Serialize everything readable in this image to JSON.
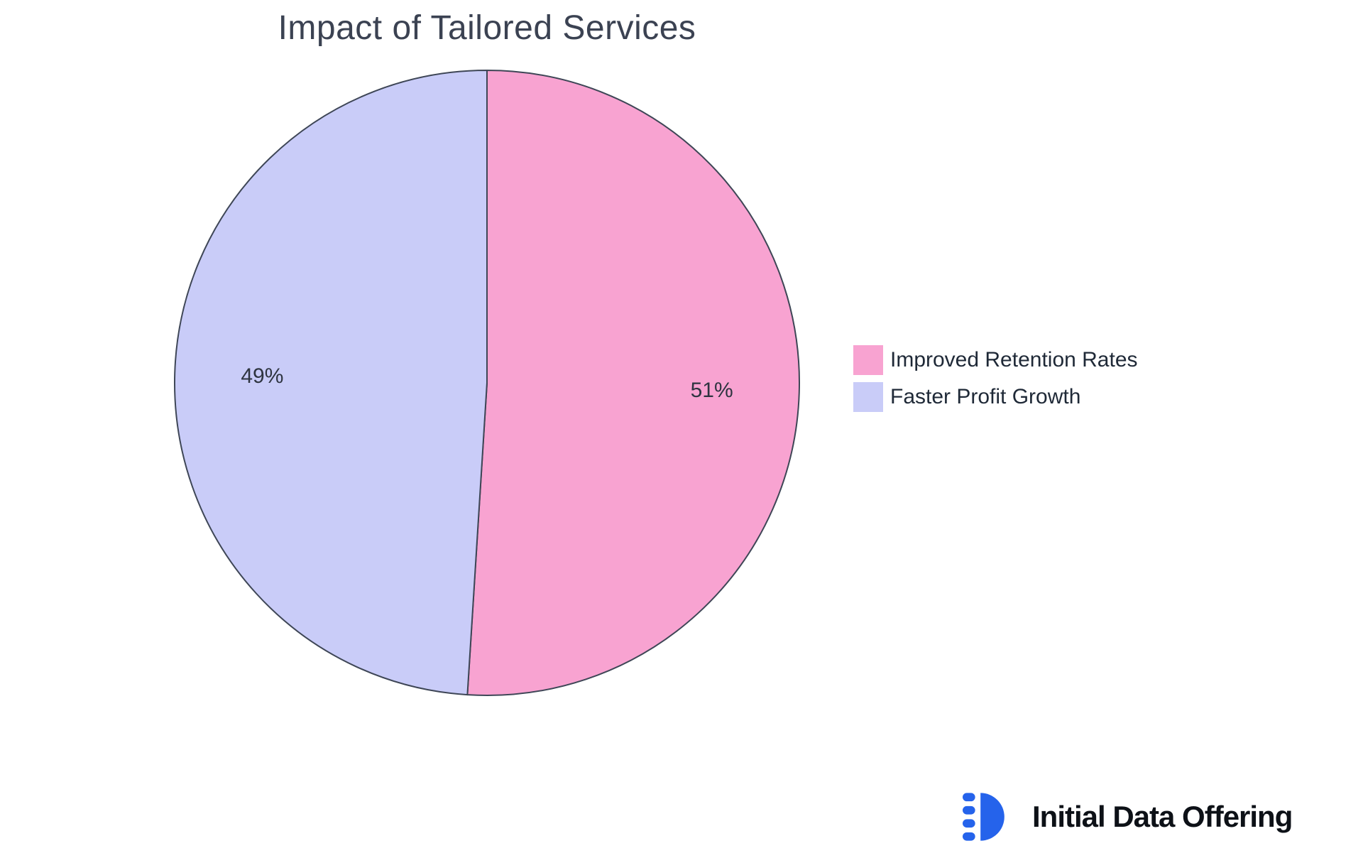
{
  "chart_data": {
    "type": "pie",
    "title": "Impact of Tailored Services",
    "labels": [
      "Improved Retention Rates",
      "Faster Profit Growth"
    ],
    "values": [
      51,
      49
    ],
    "display_labels": [
      "51%",
      "49%"
    ],
    "colors": [
      "#F8A3D1",
      "#C9CCF8"
    ],
    "stroke_color": "#3E4656",
    "legend_position": "right",
    "start_angle_deg": 0,
    "direction": "clockwise"
  },
  "footer": {
    "brand": "Initial Data Offering",
    "logo_color": "#2563EB"
  }
}
